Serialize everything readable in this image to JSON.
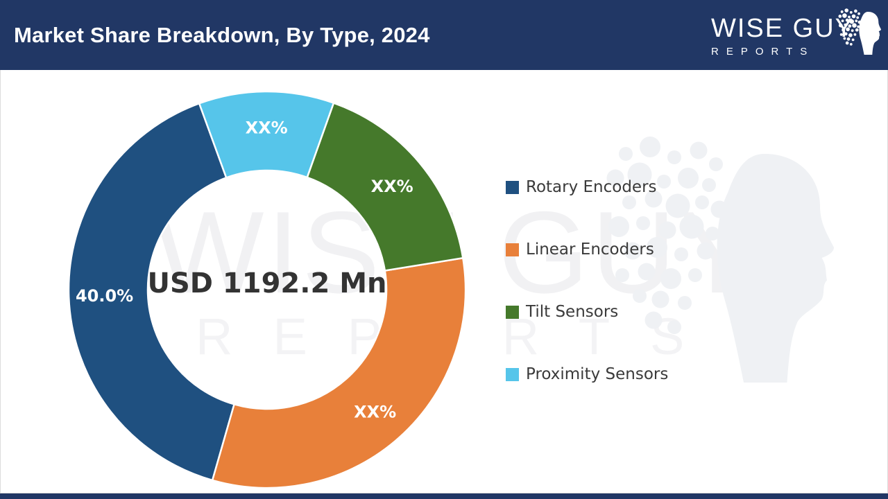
{
  "header": {
    "title": "Market Share Breakdown, By Type, 2024",
    "bg_color": "#213765",
    "logo": {
      "line1": "WISE GUY",
      "line2": "REPORTS",
      "icon": "face-profile-dots"
    }
  },
  "chart_data": {
    "type": "pie",
    "subtype": "donut",
    "title": "Market Share Breakdown, By Type, 2024",
    "center_label": "USD 1192.2 Mn",
    "start_angle_deg": -20,
    "direction": "counterclockwise",
    "inner_radius_ratio": 0.6,
    "legend_position": "right",
    "segments": [
      {
        "name": "Rotary Encoders",
        "label": "40.0%",
        "value": 40.0,
        "color": "#1f5080"
      },
      {
        "name": "Linear Encoders",
        "label": "XX%",
        "value": 32.0,
        "color": "#e8803a"
      },
      {
        "name": "Tilt Sensors",
        "label": "XX%",
        "value": 17.0,
        "color": "#45792b"
      },
      {
        "name": "Proximity Sensors",
        "label": "XX%",
        "value": 11.0,
        "color": "#56c5ea"
      }
    ]
  },
  "watermark": {
    "line1": "WISEGUY",
    "line2": "REPORTS"
  },
  "footer": {
    "bg_color": "#213765"
  },
  "colors": {
    "header_bg": "#213765",
    "center_text": "#333333",
    "legend_text": "#3a3a3a",
    "watermark": "#f1f1f3",
    "segment_label_text": "#ffffff"
  }
}
